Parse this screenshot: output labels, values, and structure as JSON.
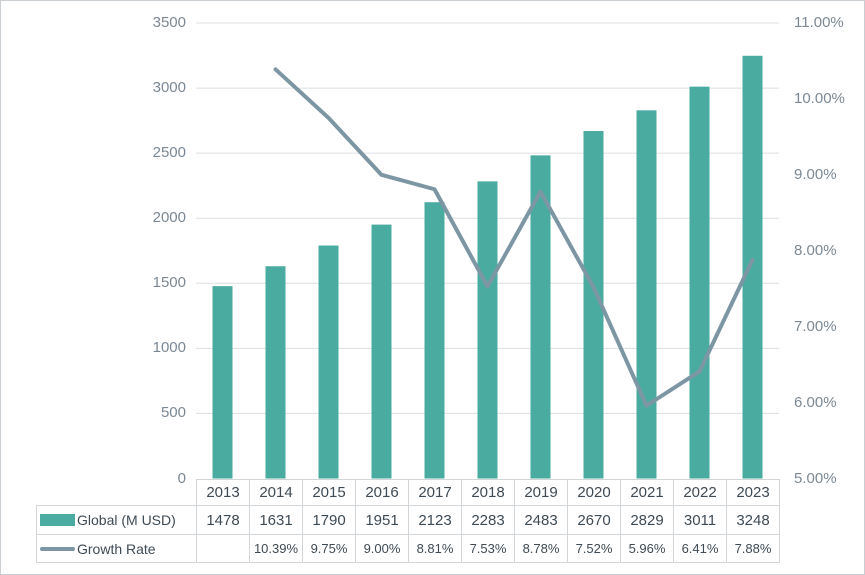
{
  "figure": {
    "background": "#ffffff",
    "border_color": "#c9ced3"
  },
  "chart_data": {
    "type": "bar",
    "title": "",
    "xlabel": "",
    "ylabel": "",
    "categories": [
      "2013",
      "2014",
      "2015",
      "2016",
      "2017",
      "2018",
      "2019",
      "2020",
      "2021",
      "2022",
      "2023"
    ],
    "series": [
      {
        "name": "Global (M USD)",
        "chart": "bar",
        "axis": "left",
        "color": "#4aaca0",
        "values": [
          1478,
          1631,
          1790,
          1951,
          2123,
          2283,
          2483,
          2670,
          2829,
          3011,
          3248
        ]
      },
      {
        "name": "Growth Rate",
        "chart": "line",
        "axis": "right",
        "color": "#7d96a4",
        "unit": "percent",
        "values": [
          null,
          10.39,
          9.75,
          9.0,
          8.81,
          7.53,
          8.78,
          7.52,
          5.96,
          6.41,
          7.88
        ]
      }
    ],
    "left_axis": {
      "min": 0,
      "max": 3500,
      "step": 500,
      "tick_labels": [
        "0",
        "500",
        "1000",
        "1500",
        "2000",
        "2500",
        "3000",
        "3500"
      ]
    },
    "right_axis": {
      "min": 5,
      "max": 11,
      "step": 1,
      "tick_labels": [
        "5.00%",
        "6.00%",
        "7.00%",
        "8.00%",
        "9.00%",
        "10.00%",
        "11.00%"
      ]
    },
    "gridlines": true,
    "legend_position": "left-of-data-table"
  },
  "table": {
    "years": [
      "2013",
      "2014",
      "2015",
      "2016",
      "2017",
      "2018",
      "2019",
      "2020",
      "2021",
      "2022",
      "2023"
    ],
    "rows": [
      {
        "label": "Global (M USD)",
        "swatch": "bar-swatch",
        "values": [
          "1478",
          "1631",
          "1790",
          "1951",
          "2123",
          "2283",
          "2483",
          "2670",
          "2829",
          "3011",
          "3248"
        ]
      },
      {
        "label": "Growth Rate",
        "swatch": "line-swatch",
        "values": [
          "",
          "10.39%",
          "9.75%",
          "9.00%",
          "8.81%",
          "7.53%",
          "8.78%",
          "7.52%",
          "5.96%",
          "6.41%",
          "7.88%"
        ]
      }
    ]
  },
  "colors": {
    "bar": "#4aaca0",
    "line": "#7d96a4",
    "grid": "#dcdfe1",
    "table_border": "#d3d6d8",
    "axis_text": "#7b8894",
    "table_text": "#3e4a54"
  }
}
